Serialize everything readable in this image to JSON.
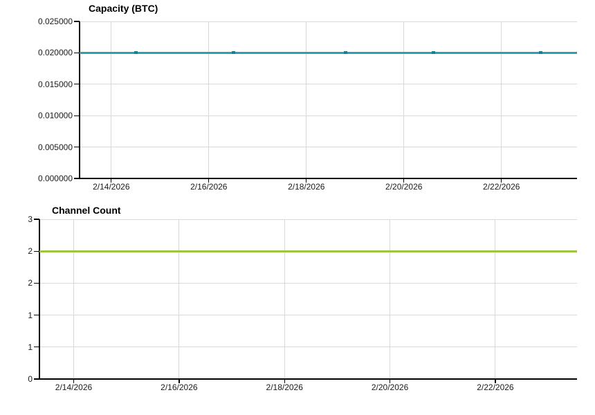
{
  "page": {
    "background": "#ffffff"
  },
  "colors": {
    "grid": "#d9d9d9",
    "axis": "#000000",
    "tick_text": "#1a1a1a",
    "title_text": "#000000"
  },
  "chart_data": [
    {
      "type": "line",
      "title": "Capacity (BTC)",
      "xlabel": "",
      "ylabel": "",
      "ylim": [
        0,
        0.025
      ],
      "grid": true,
      "legend": "none",
      "x_domain_days": {
        "month": 2,
        "year": 2026,
        "min_day": 13.35,
        "max_day": 23.55
      },
      "x_ticks": [
        {
          "day": 14,
          "label": "2/14/2026"
        },
        {
          "day": 16,
          "label": "2/16/2026"
        },
        {
          "day": 18,
          "label": "2/18/2026"
        },
        {
          "day": 20,
          "label": "2/20/2026"
        },
        {
          "day": 22,
          "label": "2/22/2026"
        }
      ],
      "y_ticks": [
        {
          "value": 0.025,
          "label": "0.025000"
        },
        {
          "value": 0.02,
          "label": "0.020000"
        },
        {
          "value": 0.015,
          "label": "0.015000"
        },
        {
          "value": 0.01,
          "label": "0.010000"
        },
        {
          "value": 0.005,
          "label": "0.005000"
        },
        {
          "value": 0.0,
          "label": "0.000000"
        }
      ],
      "series": [
        {
          "name": "Capacity",
          "color": "#2aa2ac",
          "marker_color": "#17808b",
          "constant_value": 0.02,
          "marker_days": [
            14.5,
            16.5,
            18.8,
            20.6,
            22.8
          ]
        }
      ]
    },
    {
      "type": "line",
      "title": "Channel Count",
      "xlabel": "",
      "ylabel": "",
      "ylim": [
        0,
        2.5
      ],
      "grid": true,
      "legend": "none",
      "x_domain_days": {
        "month": 2,
        "year": 2026,
        "min_day": 13.35,
        "max_day": 23.55
      },
      "x_ticks": [
        {
          "day": 14,
          "label": "2/14/2026"
        },
        {
          "day": 16,
          "label": "2/16/2026"
        },
        {
          "day": 18,
          "label": "2/18/2026"
        },
        {
          "day": 20,
          "label": "2/20/2026"
        },
        {
          "day": 22,
          "label": "2/22/2026"
        }
      ],
      "y_ticks": [
        {
          "value": 2.5,
          "label": "3"
        },
        {
          "value": 2.0,
          "label": "2"
        },
        {
          "value": 1.5,
          "label": "2"
        },
        {
          "value": 1.0,
          "label": "1"
        },
        {
          "value": 0.5,
          "label": "1"
        },
        {
          "value": 0.0,
          "label": "0"
        }
      ],
      "series": [
        {
          "name": "Channel Count",
          "color": "#9cc63d",
          "marker_color": "#9cc63d",
          "constant_value": 2,
          "marker_days": []
        }
      ]
    }
  ]
}
